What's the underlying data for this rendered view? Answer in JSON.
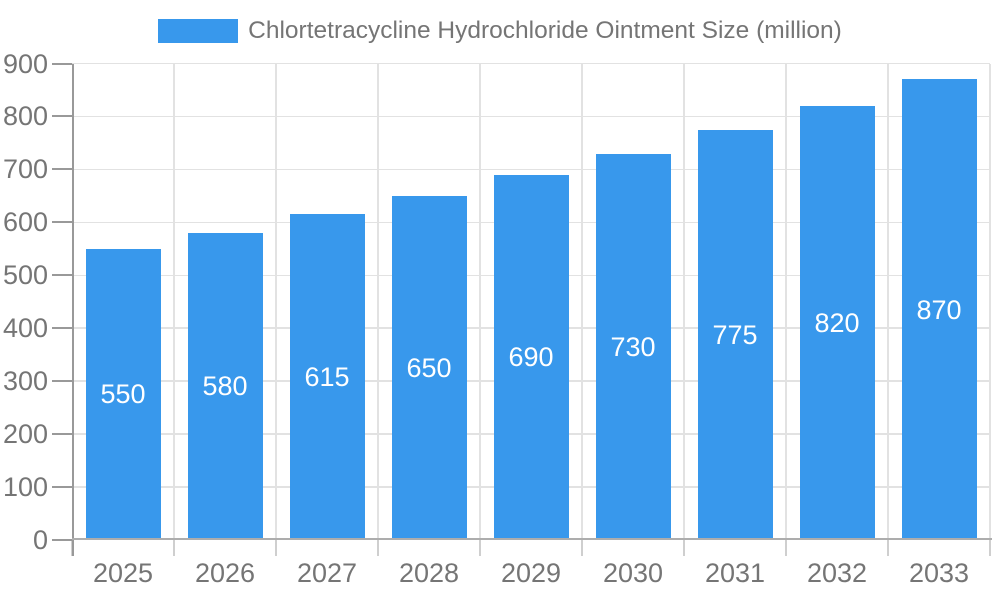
{
  "chart_data": {
    "type": "bar",
    "legend_label": "Chlortetracycline Hydrochloride Ointment Size (million)",
    "legend_position": "top",
    "categories": [
      "2025",
      "2026",
      "2027",
      "2028",
      "2029",
      "2030",
      "2031",
      "2032",
      "2033"
    ],
    "values": [
      550,
      580,
      615,
      650,
      690,
      730,
      775,
      820,
      870
    ],
    "value_label_position": "inside-center",
    "xlabel": "",
    "ylabel": "",
    "ylim": [
      0,
      900
    ],
    "ytick_step": 100,
    "ytick_labels": [
      "0",
      "100",
      "200",
      "300",
      "400",
      "500",
      "600",
      "700",
      "800",
      "900"
    ],
    "grid": "on"
  },
  "colors": {
    "bar": "#3898EC",
    "value_label": "#FFFFFF",
    "axis_text": "#757575",
    "legend_text": "#757575",
    "gridline": "#E2E2E2",
    "axis_line": "#999999",
    "x_tick": "#CFCFCF",
    "background": "#FFFFFF"
  }
}
